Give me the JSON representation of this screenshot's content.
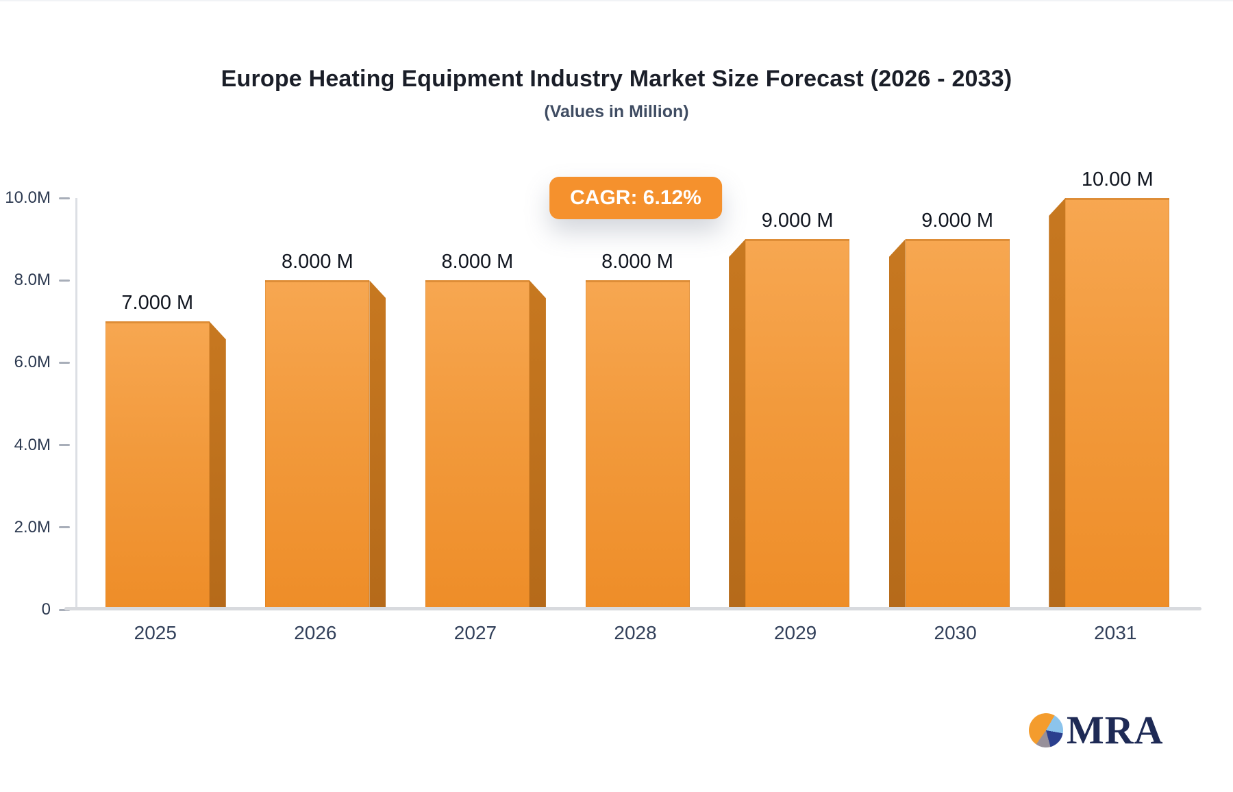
{
  "colors": {
    "accent_orange": "#F5912D",
    "bar_face_top": "#F7A751",
    "bar_face_bottom": "#EE8D28",
    "bar_side_dark": "#C2711D",
    "axis_line": "#DCDFE4",
    "baseline": "#D8DADE",
    "tick_text": "#2C3950",
    "title_text": "#1A1E28",
    "subtitle_text": "#3F4C62",
    "logo_navy": "#1E2A55",
    "logo_pie_lightblue": "#8CC4EC",
    "logo_pie_navy": "#2B3F8E",
    "logo_pie_gray": "#97909A",
    "logo_pie_orange": "#F49C2D"
  },
  "header": {
    "title": "Europe Heating Equipment Industry Market Size Forecast (2026 - 2033)",
    "subtitle": "(Values in Million)"
  },
  "badge": {
    "label": "CAGR: 6.12%"
  },
  "chart_data": {
    "type": "bar",
    "title": "Europe Heating Equipment Industry Market Size Forecast (2026 - 2033)",
    "subtitle": "(Values in Million)",
    "annotation": "CAGR: 6.12%",
    "categories": [
      "2025",
      "2026",
      "2027",
      "2028",
      "2029",
      "2030",
      "2031"
    ],
    "values_millions": [
      7,
      8,
      8,
      8,
      9,
      9,
      10
    ],
    "value_labels": [
      "7.000 M",
      "8.000 M",
      "8.000 M",
      "8.000 M",
      "9.000 M",
      "9.000 M",
      "10.00 M"
    ],
    "y_tick_labels": [
      "10.0M",
      "8.0M",
      "6.0M",
      "4.0M",
      "2.0M",
      "0"
    ],
    "ylim_millions": [
      0,
      10
    ],
    "xlabel": "",
    "ylabel": "",
    "grid": false,
    "legend": false,
    "bar_3d_sides": [
      "right",
      "right",
      "right",
      "none",
      "left",
      "left",
      "left"
    ]
  },
  "logo": {
    "text": "MRA"
  }
}
